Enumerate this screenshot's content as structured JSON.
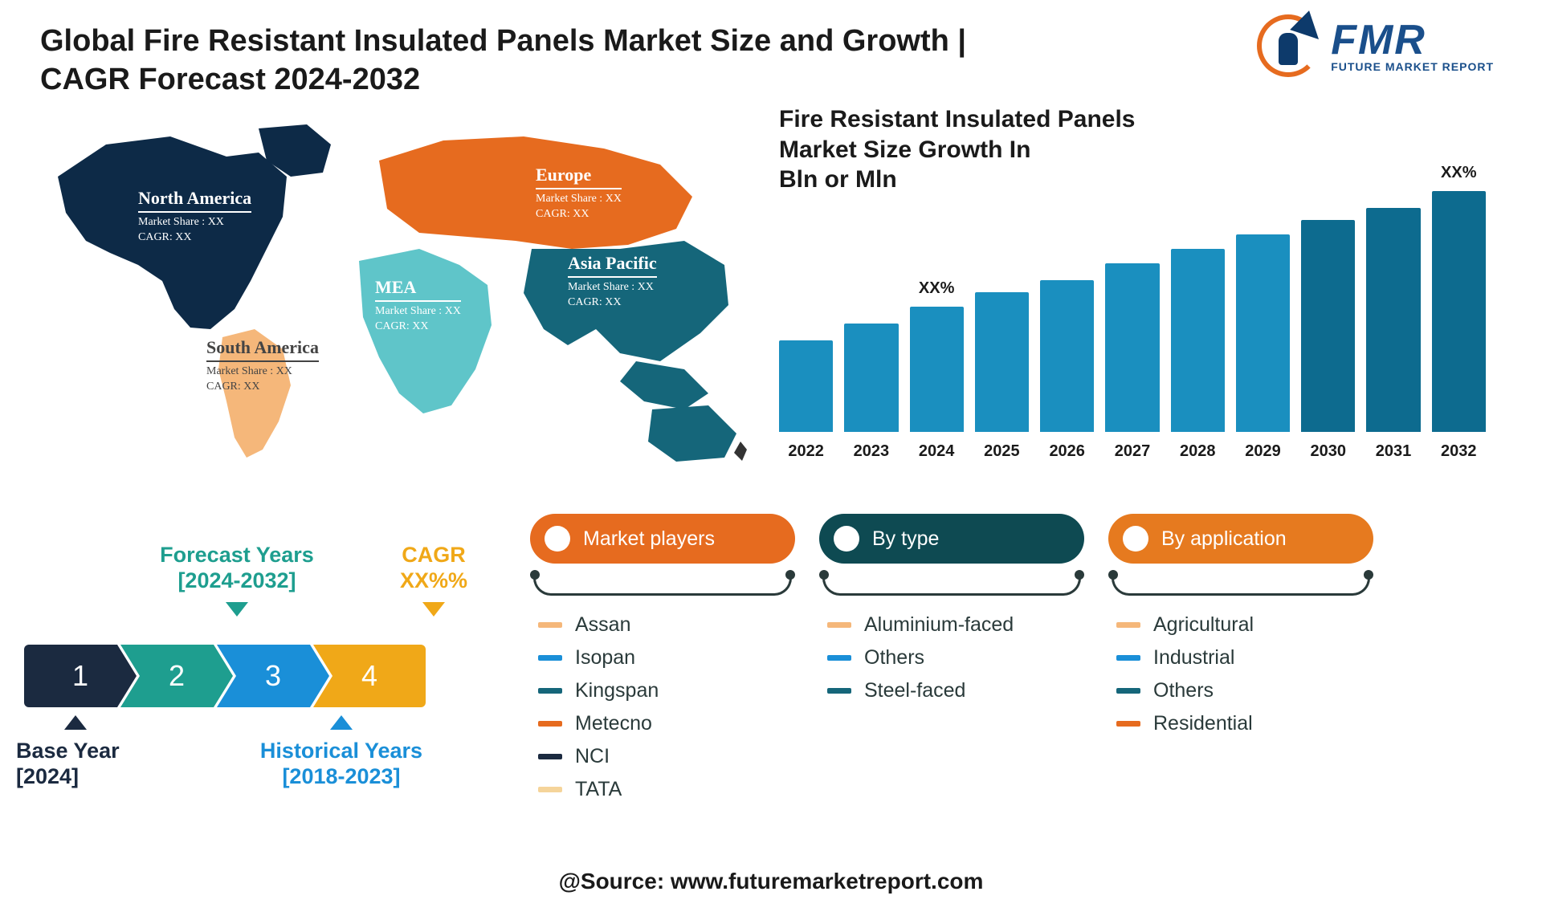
{
  "title": "Global Fire Resistant Insulated Panels Market Size and Growth | CAGR Forecast 2024-2032",
  "logo": {
    "fmr": "FMR",
    "sub": "FUTURE MARKET REPORT"
  },
  "source": "@Source: www.futuremarketreport.com",
  "colors": {
    "na": "#0d2a47",
    "sa": "#f5b77a",
    "mea": "#5fc5c9",
    "eu": "#e66b1f",
    "ap": "#15667a",
    "bar": "#1a8fbf",
    "bar_dark": "#0d6b8f",
    "step1": "#1b2a40",
    "step2": "#1e9e8f",
    "step3": "#1a8fd8",
    "step4": "#f0a818",
    "pill_players": "#e66b1f",
    "pill_type": "#0e4a52",
    "pill_app": "#e67a1f",
    "text_base": "#1b2a40",
    "text_forecast": "#1e9e8f",
    "text_hist": "#1a8fd8",
    "text_cagr": "#f0a818"
  },
  "regions": {
    "na": {
      "name": "North America",
      "share": "Market Share : XX",
      "cagr": "CAGR: XX"
    },
    "sa": {
      "name": "South America",
      "share": "Market Share : XX",
      "cagr": "CAGR: XX"
    },
    "mea": {
      "name": "MEA",
      "share": "Market Share : XX",
      "cagr": "CAGR: XX"
    },
    "eu": {
      "name": "Europe",
      "share": "Market Share : XX",
      "cagr": "CAGR: XX"
    },
    "ap": {
      "name": "Asia Pacific",
      "share": "Market Share : XX",
      "cagr": "CAGR: XX"
    }
  },
  "chart": {
    "title": "Fire Resistant Insulated Panels Market Size Growth In\nBln or Mln",
    "years": [
      "2022",
      "2023",
      "2024",
      "2025",
      "2026",
      "2027",
      "2028",
      "2029",
      "2030",
      "2031",
      "2032"
    ],
    "heights_pct": [
      38,
      45,
      52,
      58,
      63,
      70,
      76,
      82,
      88,
      93,
      100
    ],
    "dark_bars": [
      8,
      9,
      10
    ],
    "annotations": {
      "2": "XX%",
      "10": "XX%"
    }
  },
  "timeline": {
    "forecast_label": "Forecast Years",
    "forecast_range": "[2024-2032]",
    "cagr_label": "CAGR",
    "cagr_value": "XX%%",
    "base_label": "Base Year",
    "base_range": "[2024]",
    "hist_label": "Historical Years",
    "hist_range": "[2018-2023]",
    "steps": [
      "1",
      "2",
      "3",
      "4"
    ]
  },
  "players": {
    "title": "Market players",
    "items": [
      {
        "label": "Assan",
        "color": "#f5b77a"
      },
      {
        "label": "Isopan",
        "color": "#1a8fd8"
      },
      {
        "label": "Kingspan",
        "color": "#15667a"
      },
      {
        "label": "Metecno",
        "color": "#e66b1f"
      },
      {
        "label": "NCI",
        "color": "#1b2a40"
      },
      {
        "label": "TATA",
        "color": "#f5d49a"
      }
    ]
  },
  "bytype": {
    "title": "By type",
    "items": [
      {
        "label": "Aluminium-faced",
        "color": "#f5b77a"
      },
      {
        "label": "Others",
        "color": "#1a8fd8"
      },
      {
        "label": "Steel-faced",
        "color": "#15667a"
      }
    ]
  },
  "byapp": {
    "title": "By application",
    "items": [
      {
        "label": "Agricultural",
        "color": "#f5b77a"
      },
      {
        "label": "Industrial",
        "color": "#1a8fd8"
      },
      {
        "label": "Others",
        "color": "#15667a"
      },
      {
        "label": "Residential",
        "color": "#e66b1f"
      }
    ]
  }
}
